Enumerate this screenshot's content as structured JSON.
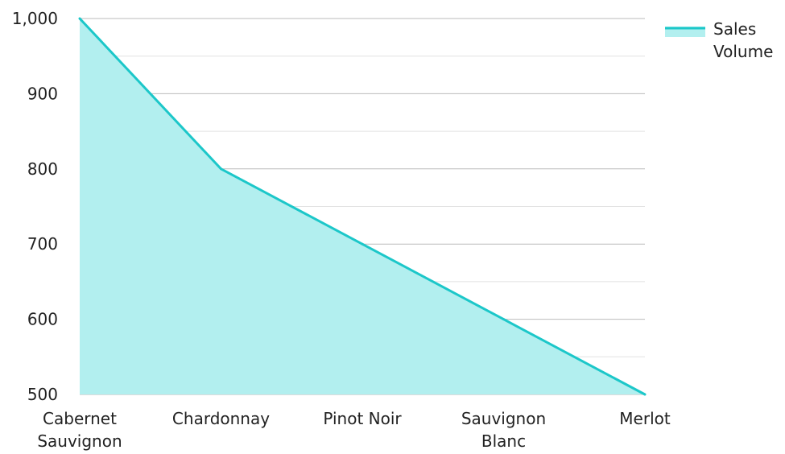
{
  "chart_data": {
    "type": "area",
    "title": "",
    "xlabel": "",
    "ylabel": "",
    "categories": [
      "Cabernet Sauvignon",
      "Chardonnay",
      "Pinot Noir",
      "Sauvignon Blanc",
      "Merlot"
    ],
    "series": [
      {
        "name": "Sales Volume",
        "values": [
          1000,
          800,
          700,
          600,
          500
        ]
      }
    ],
    "ylim": [
      500,
      1000
    ],
    "yticks": [
      500,
      600,
      700,
      800,
      900,
      1000
    ],
    "ytick_labels": [
      "500",
      "600",
      "700",
      "800",
      "900",
      "1,000"
    ],
    "grid": true,
    "minor_grid": true,
    "legend": "top-right",
    "colors": {
      "line": "#1CC7C9",
      "fill": "#B2EFEF",
      "grid_major": "#BBBBBB",
      "grid_minor": "#E2E2E2",
      "text": "#222222"
    }
  }
}
